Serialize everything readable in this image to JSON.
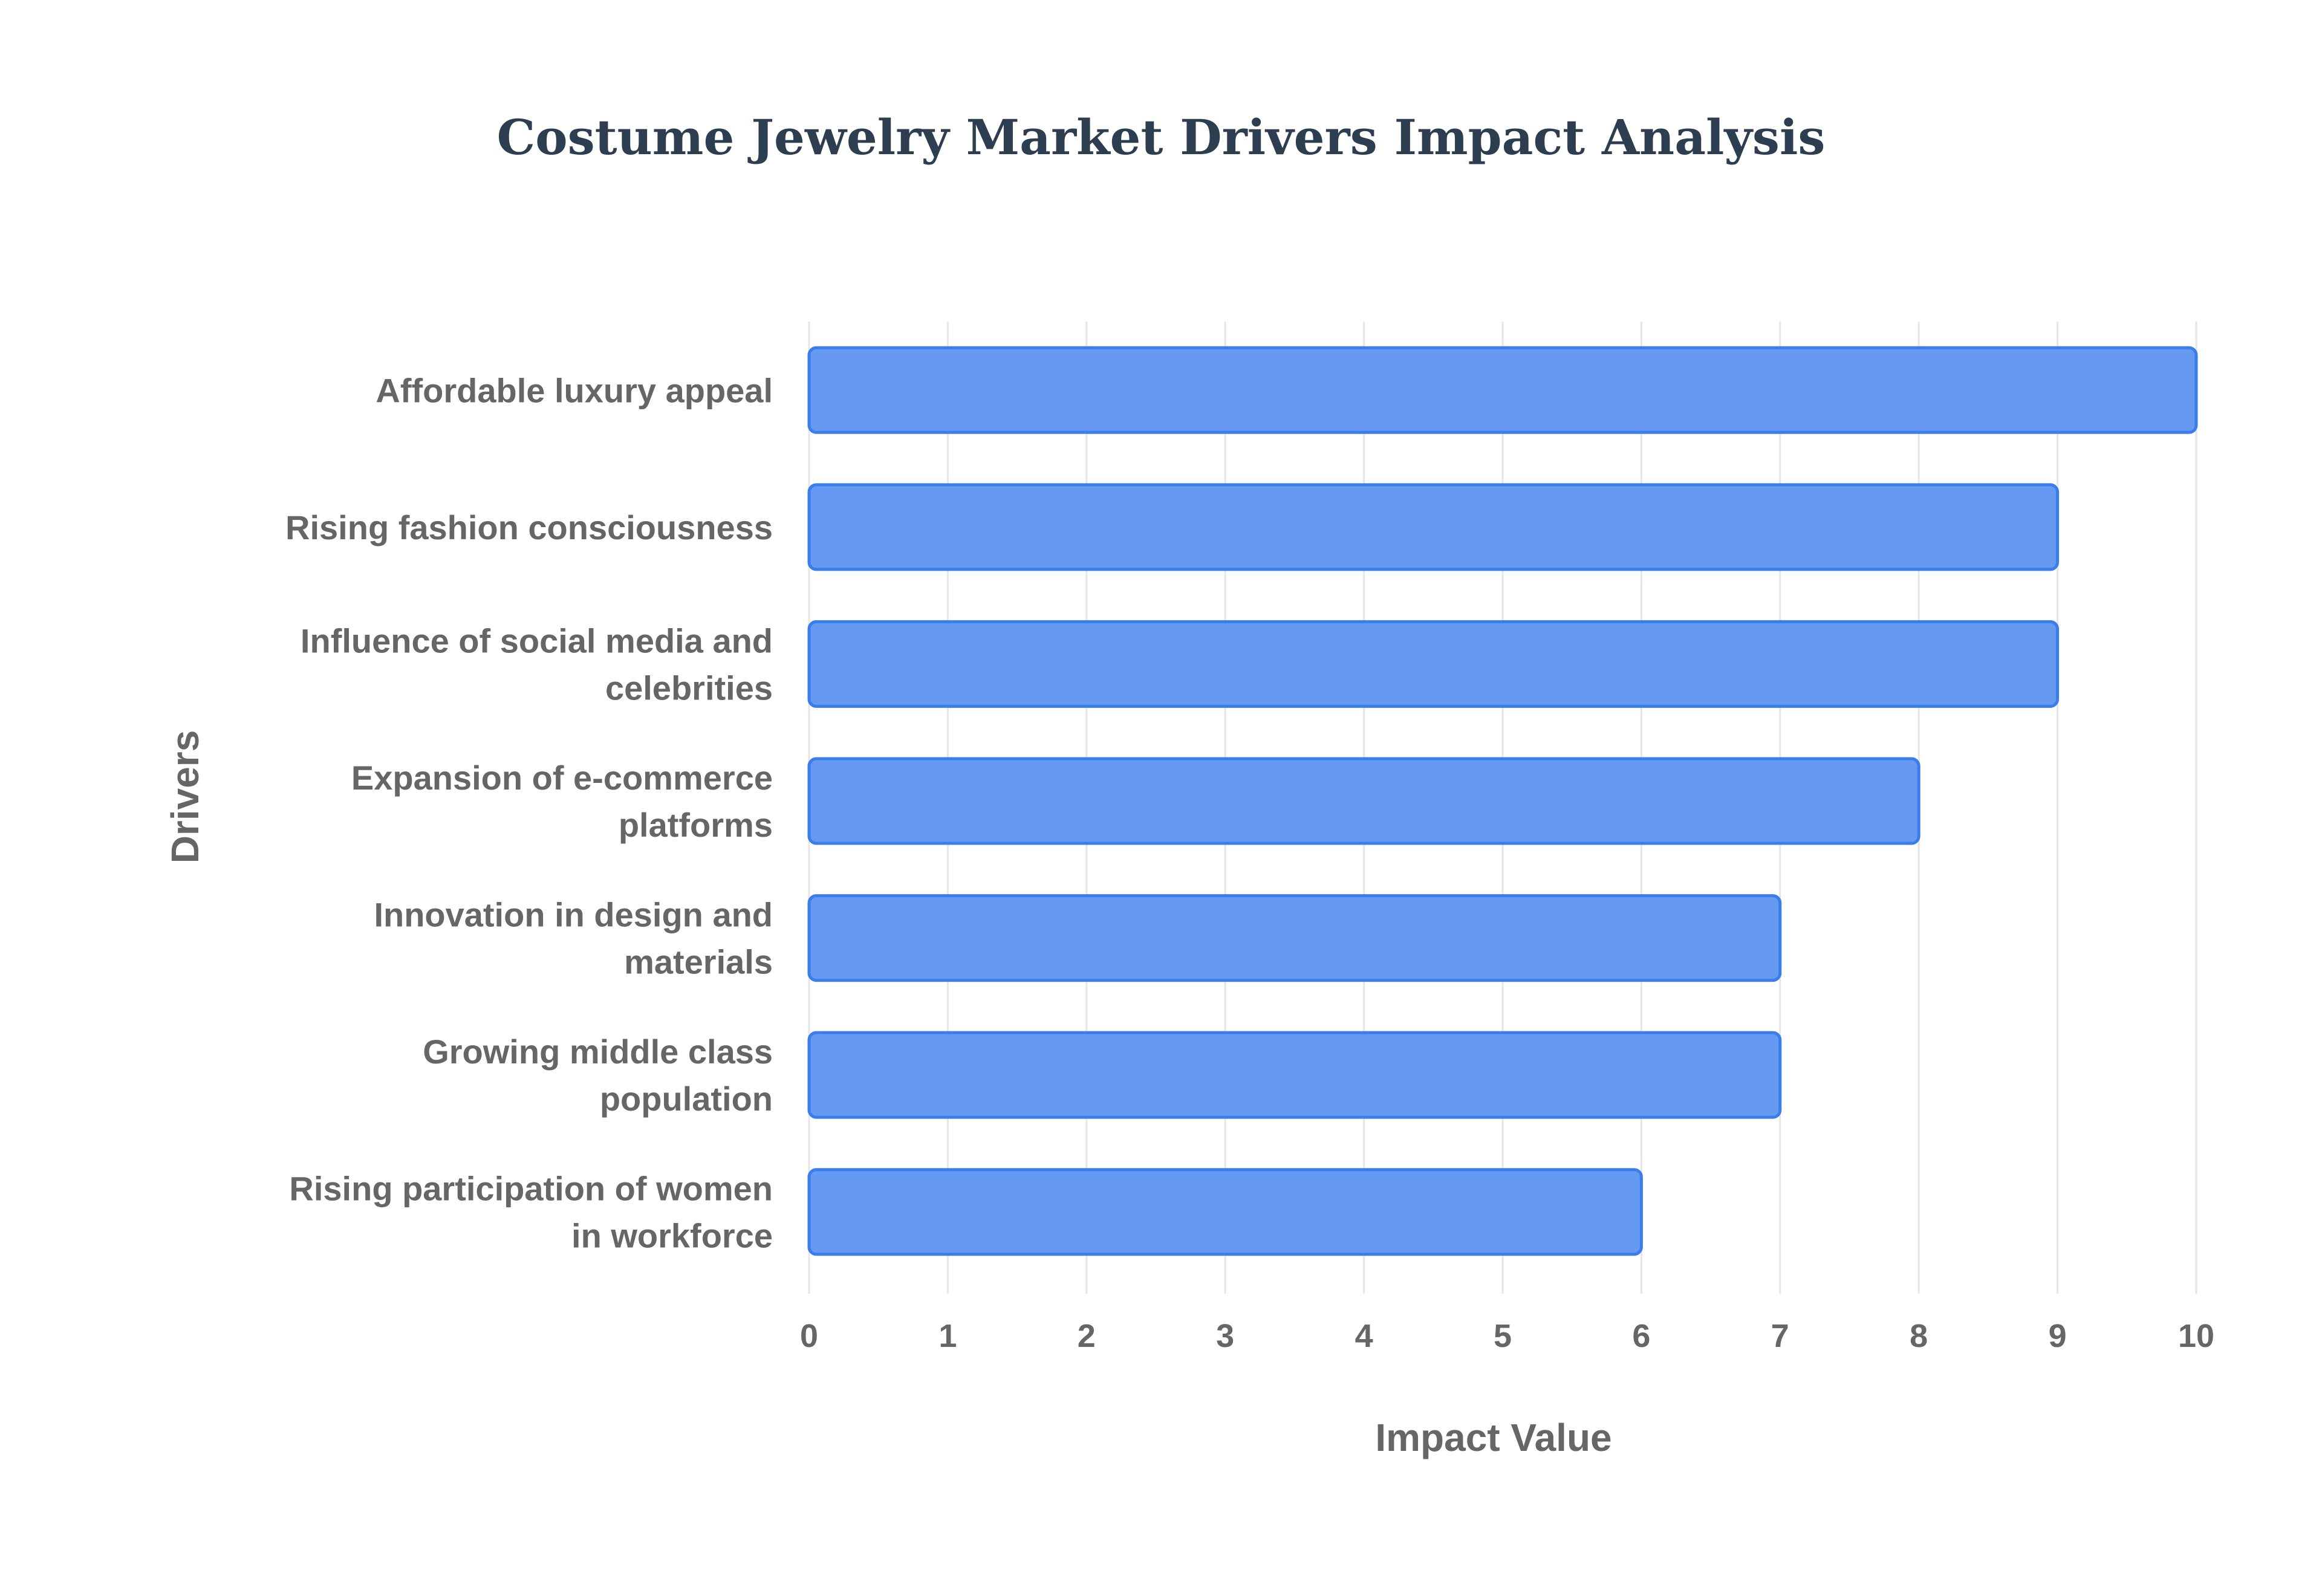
{
  "colors": {
    "title": "#2c3e50",
    "bar_fill": "#6699f2",
    "bar_stroke": "#3b7ded",
    "grid": "#e6e6e6",
    "text": "#666666"
  },
  "chart_data": {
    "type": "bar",
    "orientation": "horizontal",
    "title": "Costume Jewelry Market Drivers Impact Analysis",
    "xlabel": "Impact Value",
    "ylabel": "Drivers",
    "categories": [
      [
        "Affordable luxury appeal"
      ],
      [
        "Rising fashion consciousness"
      ],
      [
        "Influence of social media and",
        "celebrities"
      ],
      [
        "Expansion of e-commerce",
        "platforms"
      ],
      [
        "Innovation in design and",
        "materials"
      ],
      [
        "Growing middle class",
        "population"
      ],
      [
        "Rising participation of women",
        "in workforce"
      ]
    ],
    "values": [
      10,
      9,
      9,
      8,
      7,
      7,
      6
    ],
    "xlim": [
      0,
      10
    ],
    "xticks": [
      0,
      1,
      2,
      3,
      4,
      5,
      6,
      7,
      8,
      9,
      10
    ],
    "grid": true,
    "legend": "none"
  }
}
